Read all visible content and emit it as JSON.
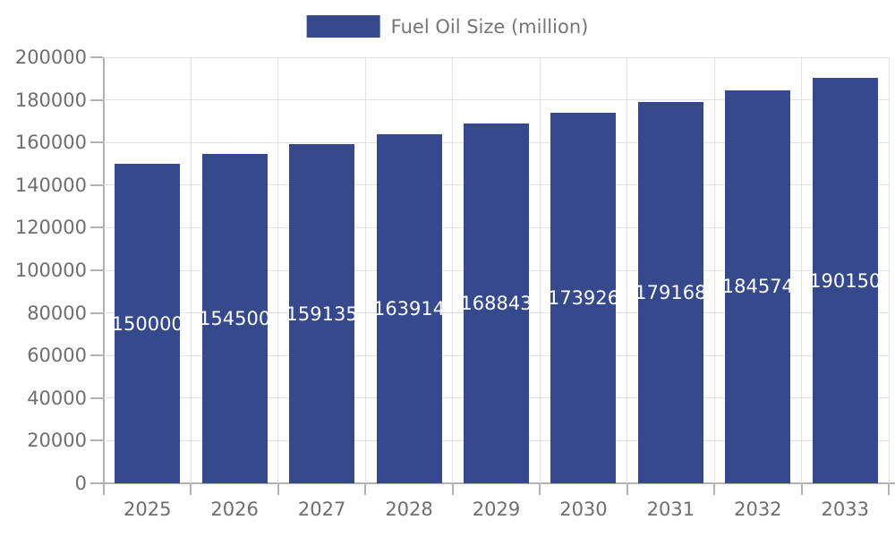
{
  "legend": {
    "label": "Fuel Oil Size (million)"
  },
  "chart_data": {
    "type": "bar",
    "title": "",
    "categories": [
      "2025",
      "2026",
      "2027",
      "2028",
      "2029",
      "2030",
      "2031",
      "2032",
      "2033"
    ],
    "series": [
      {
        "name": "Fuel Oil Size (million)",
        "values": [
          150000,
          154500,
          159135,
          163914,
          168843,
          173926,
          179168,
          184574,
          190150
        ]
      }
    ],
    "bar_value_labels": [
      "150000",
      "154500",
      "159135",
      "163914",
      "168843",
      "173926",
      "179168",
      "184574",
      "190150"
    ],
    "xlabel": "",
    "ylabel": "",
    "ylim": [
      0,
      200000
    ],
    "ytick_step": 20000,
    "ytick_labels": [
      "0",
      "20000",
      "40000",
      "60000",
      "80000",
      "100000",
      "120000",
      "140000",
      "160000",
      "180000",
      "200000"
    ],
    "grid": true,
    "legend_position": "top-center"
  },
  "colors": {
    "bar": "#35498c",
    "grid": "#e2e2e2",
    "axis": "#b1b1b1",
    "axis_text": "#6e6e6e",
    "legend_text": "#757575",
    "bar_label_text": "#ffffff",
    "background": "#ffffff"
  }
}
